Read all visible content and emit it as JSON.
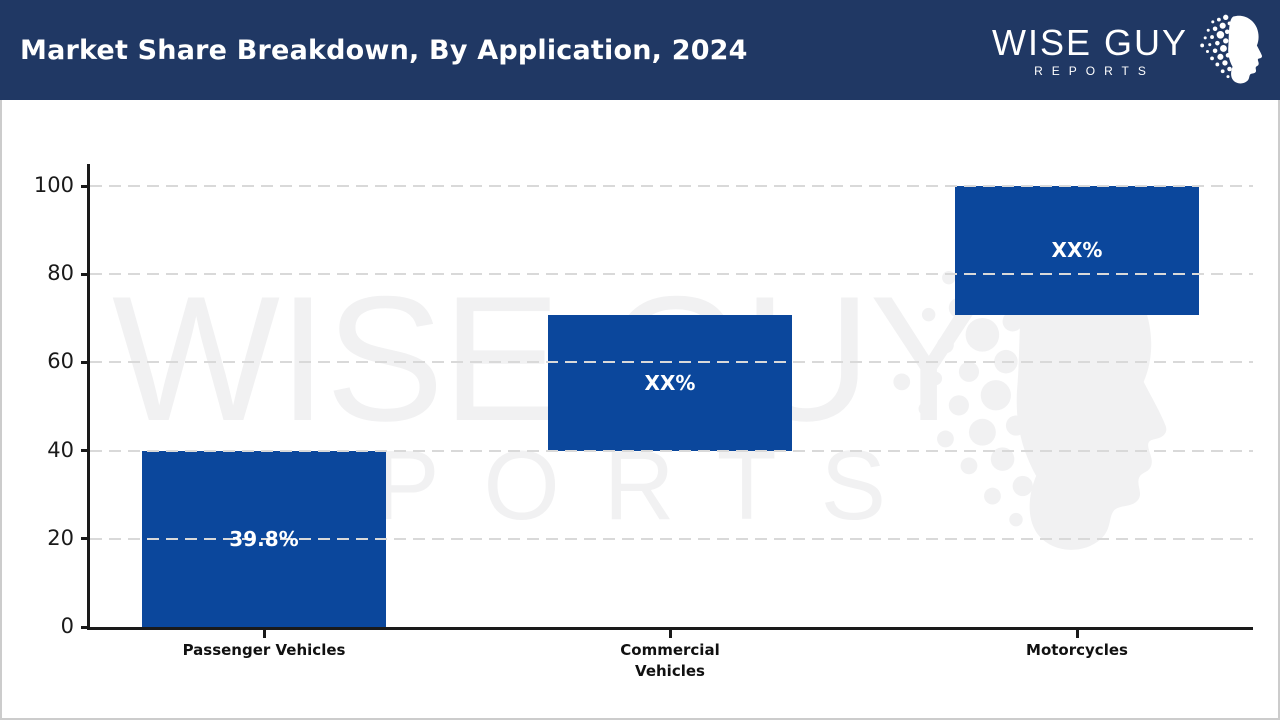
{
  "header": {
    "title": "Market Share Breakdown, By Application, 2024",
    "brand_navy": "#203864",
    "logo": {
      "wordmark": "WISE GUY",
      "subtitle": "REPORTS"
    }
  },
  "watermark": {
    "line1": "WISE GUY",
    "line2": "REPORTS"
  },
  "chart_data": {
    "type": "bar",
    "subtype": "waterfall",
    "title": "Market Share Breakdown, By Application, 2024",
    "categories": [
      "Passenger Vehicles",
      "Commercial\nVehicles",
      "Motorcycles"
    ],
    "segments": [
      {
        "category": "Passenger Vehicles",
        "start": 0,
        "end": 39.8,
        "label": "39.8%"
      },
      {
        "category": "Commercial Vehicles",
        "start": 39.8,
        "end": 70.8,
        "label": "XX%"
      },
      {
        "category": "Motorcycles",
        "start": 70.8,
        "end": 100,
        "label": "XX%"
      }
    ],
    "y_ticks": [
      0,
      20,
      40,
      60,
      80,
      100
    ],
    "ylim": [
      0,
      100
    ],
    "grid": "dashed-horizontal",
    "legend": "none",
    "bar_color": "#0b479c",
    "bar_label_color": "#ffffff",
    "axis_color": "#1a1a1a",
    "grid_color": "#d9d9d9"
  }
}
